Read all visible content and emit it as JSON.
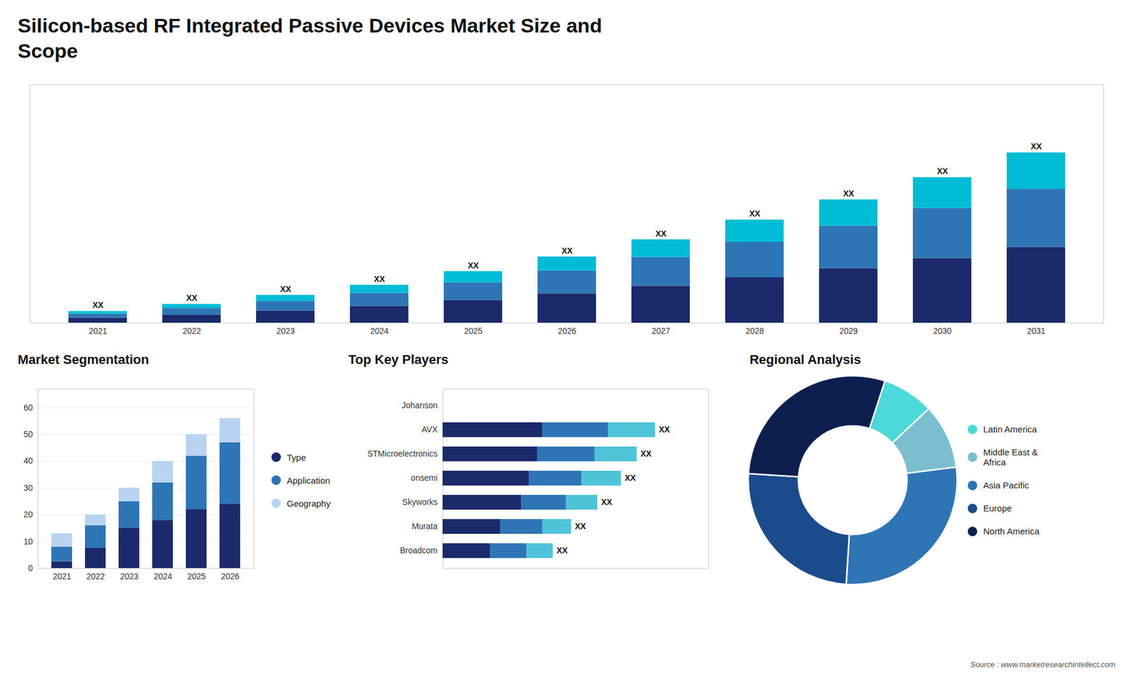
{
  "chart_data": [
    {
      "type": "bar",
      "title": "Silicon-based RF Integrated Passive Devices Market Size and\nScope",
      "annotations": [
        "Source : www.marketresearchintellect.com"
      ],
      "stacked": true,
      "categories": [
        "2021",
        "2022",
        "2023",
        "2024",
        "2025",
        "2026",
        "2027",
        "2028",
        "2029",
        "2030",
        "2031"
      ],
      "series": [
        {
          "color": "#1b2a6b",
          "values": [
            1.0,
            1.6,
            2.4,
            3.3,
            4.5,
            5.8,
            7.3,
            9.0,
            10.8,
            12.8,
            15.0
          ]
        },
        {
          "color": "#2e75b6",
          "values": [
            0.8,
            1.3,
            1.9,
            2.6,
            3.5,
            4.5,
            5.7,
            7.0,
            8.4,
            9.9,
            11.5
          ]
        },
        {
          "color": "#00bcd4",
          "values": [
            0.5,
            0.8,
            1.2,
            1.6,
            2.2,
            2.8,
            3.5,
            4.4,
            5.2,
            6.1,
            7.2
          ]
        }
      ],
      "ylim": [
        0,
        47.18
      ],
      "tick_labels": "x",
      "grid": false,
      "data_labels": true,
      "value_labels": [
        "XX",
        "XX",
        "XX",
        "XX",
        "XX",
        "XX",
        "XX",
        "XX",
        "XX",
        "XX",
        "XX"
      ]
    },
    {
      "type": "bar",
      "title": "Market Segmentation",
      "stacked": true,
      "categories": [
        "2021",
        "2022",
        "2023",
        "2024",
        "2025",
        "2026"
      ],
      "series": [
        {
          "name": "Type",
          "color": "#1b2a6b",
          "values": [
            2.5,
            7.5,
            15.0,
            18.0,
            22.0,
            24.0
          ]
        },
        {
          "name": "Application",
          "color": "#2e75b6",
          "values": [
            5.5,
            8.5,
            10.0,
            14.0,
            20.0,
            23.0
          ]
        },
        {
          "name": "Geography",
          "color": "#b8d4f0",
          "values": [
            5.0,
            4.0,
            5.0,
            8.0,
            8.0,
            9.0
          ]
        }
      ],
      "ylim": [
        0,
        67
      ],
      "yticks": [
        0,
        10,
        20,
        30,
        40,
        50,
        60
      ],
      "grid": true,
      "legend": "right"
    },
    {
      "type": "bar",
      "title": "Top Key Players",
      "orientation": "horizontal",
      "stacked": true,
      "categories": [
        "Johanson",
        "AVX",
        "STMicroelectronics",
        "onsemi",
        "Skyworks",
        "Murata",
        "Broadcom"
      ],
      "series": [
        {
          "color": "#1b2a6b",
          "values": [
            0.0,
            0.38,
            0.36,
            0.33,
            0.3,
            0.22,
            0.18
          ]
        },
        {
          "color": "#2e75b6",
          "values": [
            0.0,
            0.25,
            0.22,
            0.2,
            0.17,
            0.16,
            0.14
          ]
        },
        {
          "color": "#4fc3d8",
          "values": [
            0.0,
            0.18,
            0.16,
            0.15,
            0.12,
            0.11,
            0.1
          ]
        }
      ],
      "xlim": [
        0,
        1.0125
      ],
      "tick_labels": "y",
      "grid": false,
      "data_labels": true,
      "value_labels": [
        null,
        "XX",
        "XX",
        "XX",
        "XX",
        "XX",
        "XX"
      ]
    },
    {
      "type": "donut",
      "title": "Regional Analysis",
      "categories": [
        "Latin America",
        "Middle East &\nAfrica",
        "Asia Pacific",
        "Europe",
        "North America"
      ],
      "values": [
        8,
        10,
        28,
        25,
        29
      ],
      "colors": [
        "#4dd9d9",
        "#7bbfcf",
        "#2e75b6",
        "#1b4b8a",
        "#0d1f4f"
      ],
      "legend": "right"
    }
  ]
}
